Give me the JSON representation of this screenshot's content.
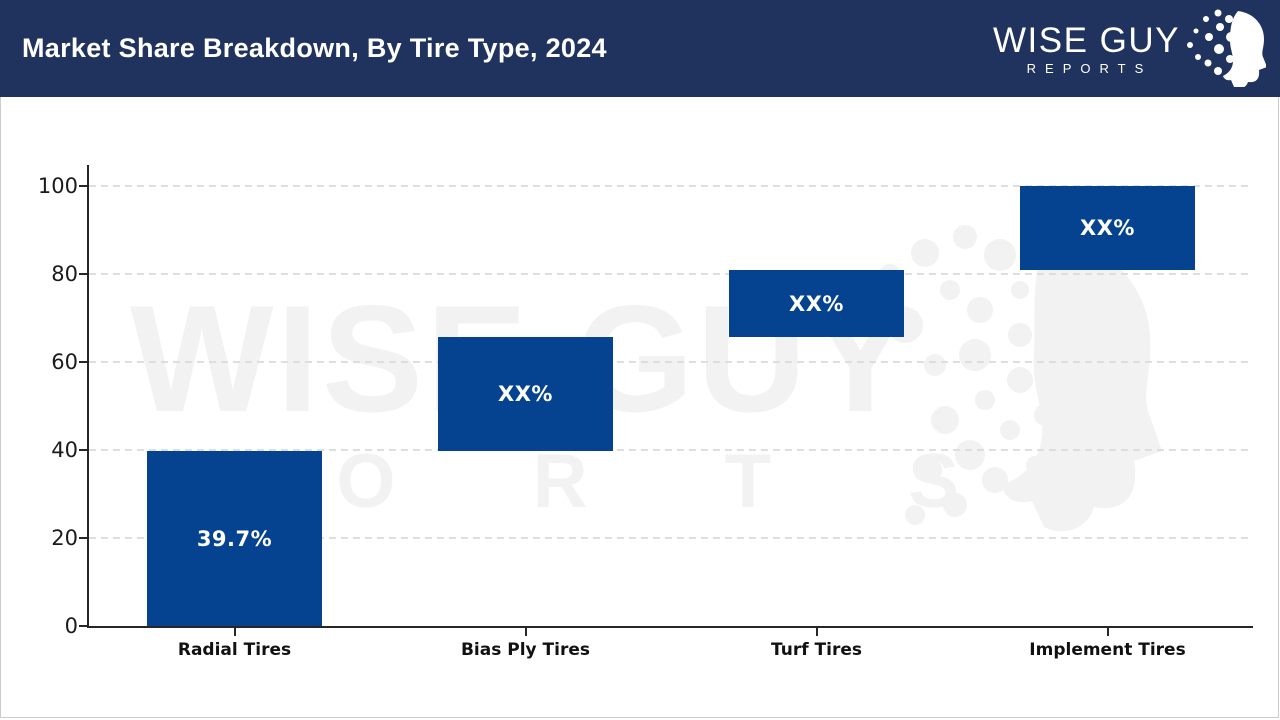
{
  "header": {
    "title": "Market Share Breakdown, By Tire Type, 2024",
    "logo_line1": "WISE GUY",
    "logo_line2": "REPORTS"
  },
  "watermark": {
    "line1": "WISE GUY",
    "line2": "P O R T S"
  },
  "colors": {
    "header_bg": "#1f335e",
    "bar_blue": "#05428f",
    "bar_label": "#ffffff",
    "gridline": "#dedede",
    "axis": "#262626",
    "watermark": "#f2f2f3",
    "frame_border": "#cccccc"
  },
  "chart_data": {
    "type": "bar",
    "subtype": "waterfall",
    "title": "Market Share Breakdown, By Tire Type, 2024",
    "categories": [
      "Radial Tires",
      "Bias Ply Tires",
      "Turf Tires",
      "Implement Tires"
    ],
    "segments": [
      {
        "category": "Radial Tires",
        "start": 0,
        "end": 39.7,
        "label": "39.7%"
      },
      {
        "category": "Bias Ply Tires",
        "start": 39.7,
        "end": 65.6,
        "label": "XX%"
      },
      {
        "category": "Turf Tires",
        "start": 65.6,
        "end": 80.9,
        "label": "XX%"
      },
      {
        "category": "Implement Tires",
        "start": 80.9,
        "end": 100,
        "label": "XX%"
      }
    ],
    "xlabel": "",
    "ylabel": "",
    "ylim": [
      0,
      100
    ],
    "yticks": [
      0,
      20,
      40,
      60,
      80,
      100
    ],
    "grid": "horizontal-dashed",
    "legend": "none",
    "bar_color": "#05428f",
    "bar_label_color": "#ffffff"
  }
}
